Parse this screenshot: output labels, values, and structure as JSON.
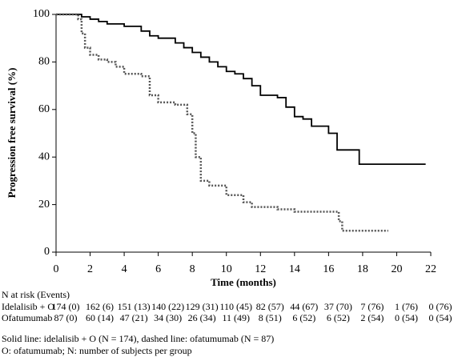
{
  "chart_data": {
    "type": "line",
    "xlabel": "Time (months)",
    "ylabel": "Progression free survival (%)",
    "xlim": [
      0,
      22
    ],
    "xticks": [
      0,
      2,
      4,
      6,
      8,
      10,
      12,
      14,
      16,
      18,
      20,
      22
    ],
    "ylim": [
      0,
      100
    ],
    "yticks": [
      0,
      20,
      40,
      60,
      80,
      100
    ],
    "step": true,
    "series": [
      {
        "color": "#000000",
        "dashed": false,
        "x": [
          0,
          1,
          1.5,
          2,
          2.5,
          3,
          4,
          5,
          5.5,
          6,
          7,
          7.5,
          8,
          8.5,
          9,
          9.5,
          10,
          10.5,
          11,
          11.5,
          12,
          13,
          13.5,
          14,
          14.5,
          15,
          16,
          16.5,
          17,
          17.8,
          19,
          21.7
        ],
        "values": [
          100,
          100,
          99,
          98,
          97,
          96,
          95,
          93,
          91,
          90,
          88,
          86,
          84,
          82,
          80,
          78,
          76,
          75,
          73,
          70,
          66,
          65,
          61,
          57,
          56,
          53,
          50,
          43,
          43,
          37,
          37,
          37
        ]
      },
      {
        "color": "#555555",
        "dashed": true,
        "x": [
          0,
          1,
          1.3,
          1.5,
          1.7,
          2,
          2.5,
          3,
          3.5,
          4,
          5,
          5.5,
          6,
          7,
          7.7,
          8,
          8.2,
          8.5,
          9,
          10,
          11,
          11.5,
          12,
          13,
          14,
          15,
          16,
          16.6,
          16.8,
          19.5
        ],
        "values": [
          100,
          100,
          98,
          92,
          86,
          83,
          81,
          80,
          78,
          75,
          74,
          66,
          63,
          62,
          58,
          50,
          40,
          30,
          28,
          24,
          21,
          19,
          19,
          18,
          17,
          17,
          17,
          13,
          9,
          9
        ]
      }
    ],
    "risk_table": {
      "title": "N at risk (Events)",
      "rows": [
        {
          "label": "Idelalisib + O",
          "cells": [
            "174 (0)",
            "162 (6)",
            "151 (13)",
            "140 (22)",
            "129 (31)",
            "110 (45)",
            "82 (57)",
            "44 (67)",
            "37 (70)",
            "7 (76)",
            "1 (76)",
            "0 (76)"
          ]
        },
        {
          "label": "Ofatumumab",
          "cells": [
            "87 (0)",
            "60 (14)",
            "47 (21)",
            "34 (30)",
            "26 (34)",
            "11 (49)",
            "8 (51)",
            "6 (52)",
            "6 (52)",
            "2 (54)",
            "0 (54)",
            "0 (54)"
          ]
        }
      ]
    },
    "footnotes": [
      "Solid line: idelalisib + O (N = 174), dashed line: ofatumumab (N = 87)",
      "O: ofatumumab; N: number of subjects per group"
    ]
  }
}
